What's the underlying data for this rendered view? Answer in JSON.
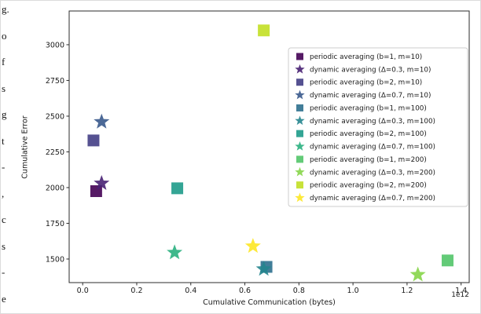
{
  "page": {
    "left_margin_fragments": [
      "g.",
      "o",
      "f",
      "s",
      "g",
      "t",
      "-",
      ",",
      "c",
      "s",
      "-",
      "e"
    ]
  },
  "chart_data": {
    "type": "scatter",
    "title": "",
    "xlabel": "Cumulative Communication (bytes)",
    "ylabel": "Cumulative Error",
    "x_offset_label": "1e12",
    "xlim": [
      -0.05,
      1.43
    ],
    "ylim": [
      1335,
      3236
    ],
    "xticks": [
      0.0,
      0.2,
      0.4,
      0.6,
      0.8,
      1.0,
      1.2,
      1.4
    ],
    "yticks": [
      1500,
      1750,
      2000,
      2250,
      2500,
      2750,
      3000
    ],
    "grid": false,
    "legend_position": "upper right",
    "series": [
      {
        "name": "periodic averaging (b=1, m=10)",
        "marker": "square",
        "color": "#440154",
        "points": [
          [
            0.05,
            1975
          ]
        ]
      },
      {
        "name": "dynamic averaging (Δ=0.3, m=10)",
        "marker": "star",
        "color": "#482173",
        "points": [
          [
            0.07,
            2030
          ]
        ]
      },
      {
        "name": "periodic averaging (b=2, m=10)",
        "marker": "square",
        "color": "#433e85",
        "points": [
          [
            0.04,
            2330
          ]
        ]
      },
      {
        "name": "dynamic averaging (Δ=0.7, m=10)",
        "marker": "star",
        "color": "#38598c",
        "points": [
          [
            0.07,
            2460
          ]
        ]
      },
      {
        "name": "periodic averaging (b=1, m=100)",
        "marker": "square",
        "color": "#2d708e",
        "points": [
          [
            0.68,
            1445
          ]
        ]
      },
      {
        "name": "dynamic averaging (Δ=0.3, m=100)",
        "marker": "star",
        "color": "#25858e",
        "points": [
          [
            0.67,
            1430
          ]
        ]
      },
      {
        "name": "periodic averaging (b=2, m=100)",
        "marker": "square",
        "color": "#1e9b8a",
        "points": [
          [
            0.35,
            1995
          ]
        ]
      },
      {
        "name": "dynamic averaging (Δ=0.7, m=100)",
        "marker": "star",
        "color": "#2ab07f",
        "points": [
          [
            0.34,
            1545
          ]
        ]
      },
      {
        "name": "periodic averaging (b=1, m=200)",
        "marker": "square",
        "color": "#52c569",
        "points": [
          [
            1.35,
            1490
          ]
        ]
      },
      {
        "name": "dynamic averaging (Δ=0.3, m=200)",
        "marker": "star",
        "color": "#86d549",
        "points": [
          [
            1.24,
            1390
          ]
        ]
      },
      {
        "name": "periodic averaging (b=2, m=200)",
        "marker": "square",
        "color": "#c2df23",
        "points": [
          [
            0.67,
            3100
          ]
        ]
      },
      {
        "name": "dynamic averaging (Δ=0.7, m=200)",
        "marker": "star",
        "color": "#fde725",
        "points": [
          [
            0.63,
            1590
          ]
        ]
      }
    ]
  }
}
